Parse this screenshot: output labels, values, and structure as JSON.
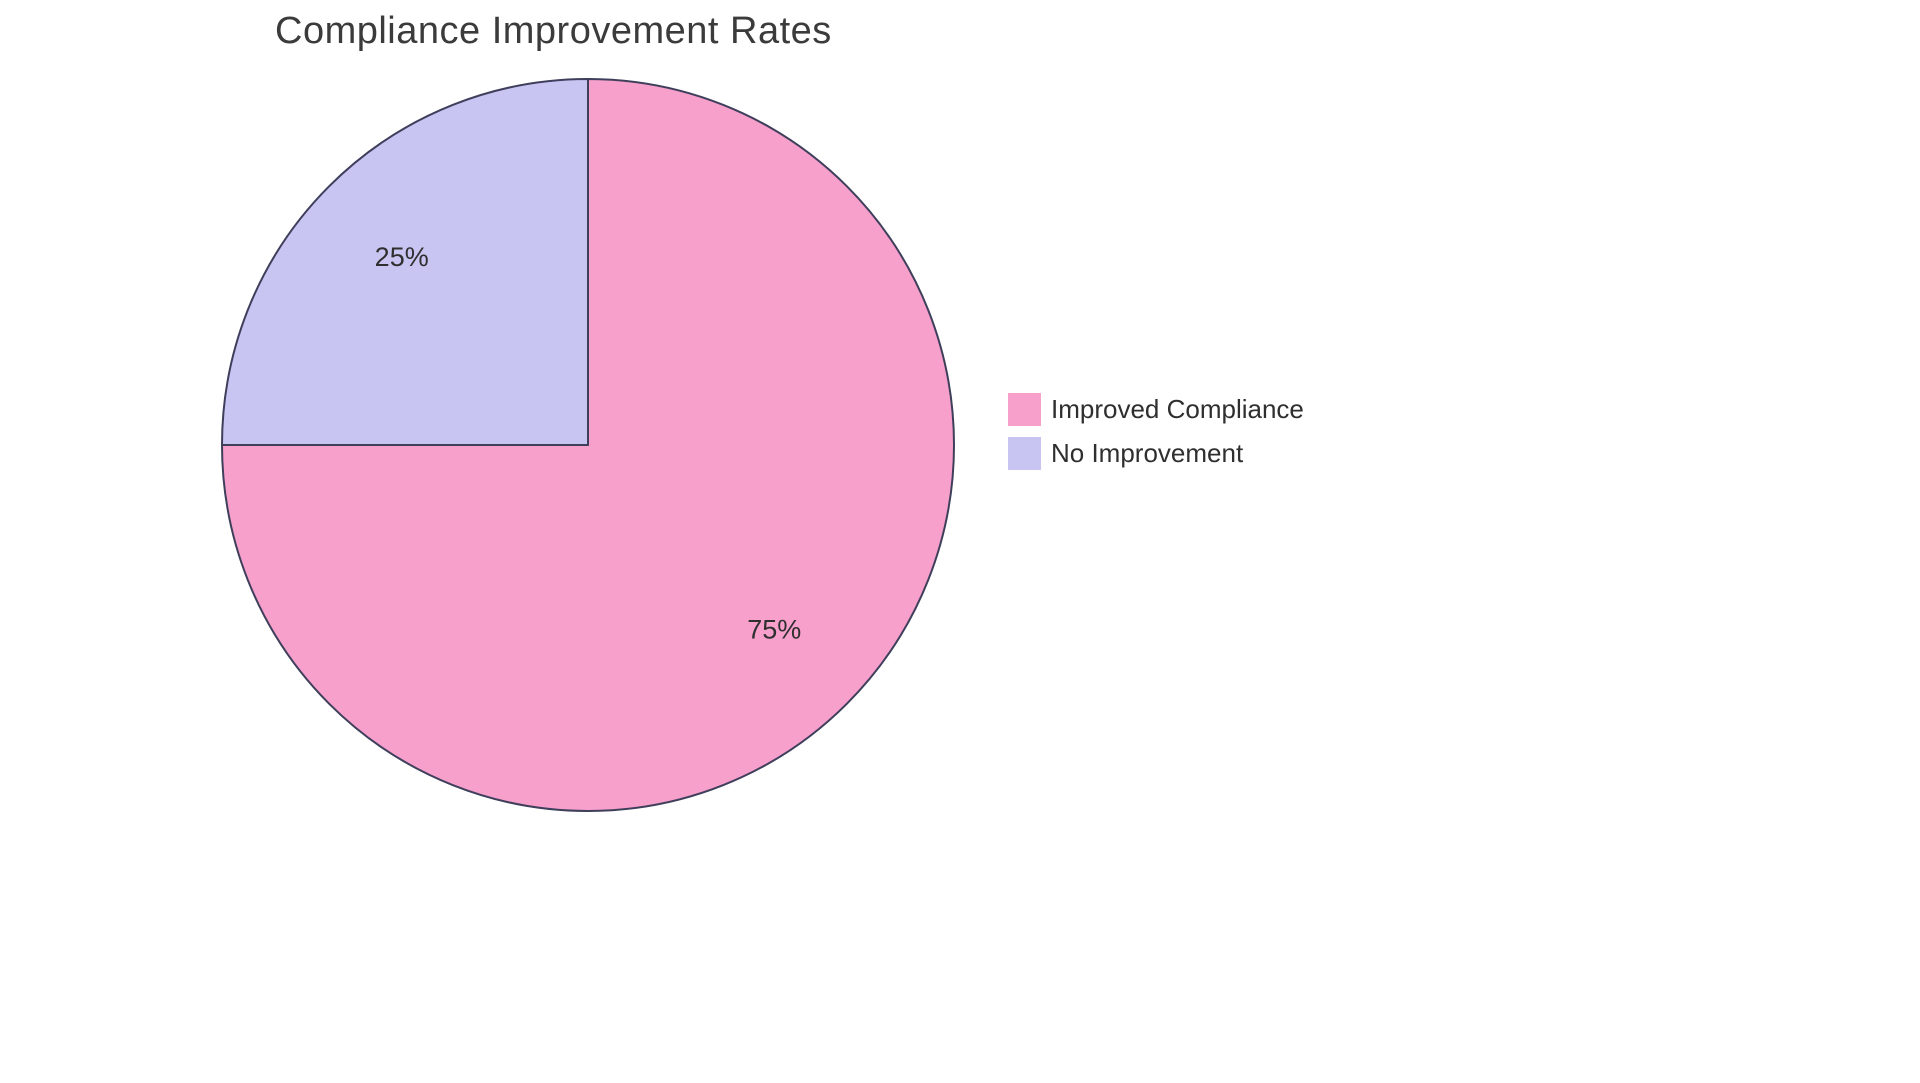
{
  "chart_data": {
    "type": "pie",
    "title": "Compliance Improvement Rates",
    "labels": [
      "Improved Compliance",
      "No Improvement"
    ],
    "values": [
      75,
      25
    ],
    "slice_labels": [
      "75%",
      "25%"
    ],
    "colors": [
      "#F8A0CC",
      "#C9C5F3"
    ],
    "slice_border_color": "#3F3F5C",
    "legend_position": "right",
    "start_angle_deg": -90,
    "direction": "clockwise",
    "background": "#FFFFFF"
  }
}
